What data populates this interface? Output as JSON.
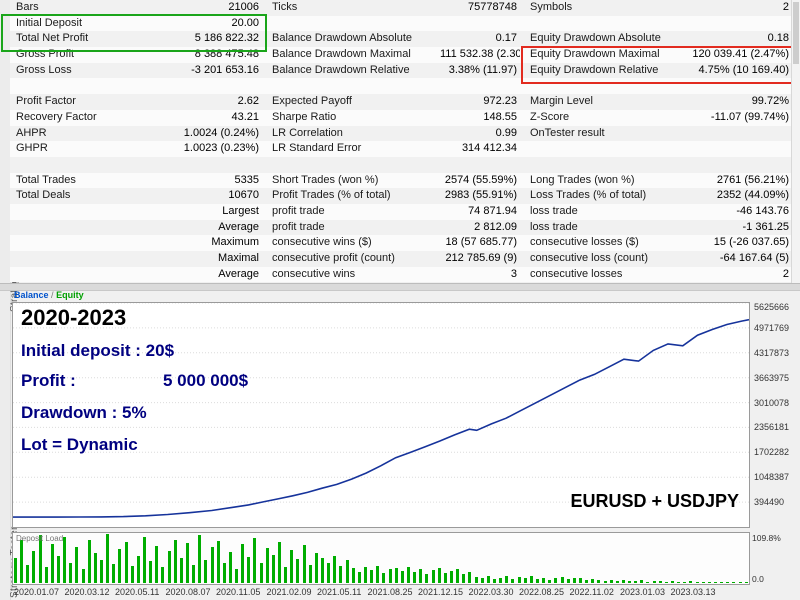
{
  "panel": {
    "caption": "Strategy Tester"
  },
  "highlights": {
    "green": "#1aa51a",
    "red": "#e22b1f"
  },
  "stats": {
    "rows": [
      [
        "Bars",
        "21006",
        "Ticks",
        "75778748",
        "Symbols",
        "2"
      ],
      [
        "Initial Deposit",
        "20.00",
        "",
        "",
        "",
        ""
      ],
      [
        "Total Net Profit",
        "5 186 822.32",
        "Balance Drawdown Absolute",
        "0.17",
        "Equity Drawdown Absolute",
        "0.18"
      ],
      [
        "Gross Profit",
        "8 388 475.48",
        "Balance Drawdown Maximal",
        "111 532.38 (2.30%)",
        "Equity Drawdown Maximal",
        "120 039.41 (2.47%)"
      ],
      [
        "Gross Loss",
        "-3 201 653.16",
        "Balance Drawdown Relative",
        "3.38% (11.97)",
        "Equity Drawdown Relative",
        "4.75% (10 169.40)"
      ],
      [
        "",
        "",
        "",
        "",
        "",
        ""
      ],
      [
        "Profit Factor",
        "2.62",
        "Expected Payoff",
        "972.23",
        "Margin Level",
        "99.72%"
      ],
      [
        "Recovery Factor",
        "43.21",
        "Sharpe Ratio",
        "148.55",
        "Z-Score",
        "-11.07 (99.74%)"
      ],
      [
        "AHPR",
        "1.0024 (0.24%)",
        "LR Correlation",
        "0.99",
        "OnTester result",
        ""
      ],
      [
        "GHPR",
        "1.0023 (0.23%)",
        "LR Standard Error",
        "314 412.34",
        "",
        ""
      ],
      [
        "",
        "",
        "",
        "",
        "",
        ""
      ],
      [
        "Total Trades",
        "5335",
        "Short Trades (won %)",
        "2574 (55.59%)",
        "Long Trades (won %)",
        "2761 (56.21%)"
      ],
      [
        "Total Deals",
        "10670",
        "Profit Trades (% of total)",
        "2983 (55.91%)",
        "Loss Trades (% of total)",
        "2352 (44.09%)"
      ],
      [
        "",
        "Largest",
        "profit trade",
        "74 871.94",
        "loss trade",
        "-46 143.76"
      ],
      [
        "",
        "Average",
        "profit trade",
        "2 812.09",
        "loss trade",
        "-1 361.25"
      ],
      [
        "",
        "Maximum",
        "consecutive wins ($)",
        "18 (57 685.77)",
        "consecutive losses ($)",
        "15 (-26 037.65)"
      ],
      [
        "",
        "Maximal",
        "consecutive profit (count)",
        "212 785.69 (9)",
        "consecutive loss (count)",
        "-64 167.64 (5)"
      ],
      [
        "",
        "Average",
        "consecutive wins",
        "3",
        "consecutive losses",
        "2"
      ]
    ]
  },
  "chart_data": [
    {
      "type": "line",
      "title": "Balance / Equity",
      "legend": [
        "Balance",
        "Equity"
      ],
      "legend_colors": [
        "#0052cc",
        "#00a000"
      ],
      "legend_separator": "/",
      "ylim": [
        -259408,
        5625666
      ],
      "yticks": [
        5625666,
        4971769,
        4317873,
        3663975,
        3010078,
        2356181,
        1702282,
        1048387,
        394490
      ],
      "grid": true,
      "series": [
        {
          "name": "Equity",
          "color": "#16339b",
          "points": [
            [
              0,
              20
            ],
            [
              0.03,
              200
            ],
            [
              0.06,
              900
            ],
            [
              0.09,
              2500
            ],
            [
              0.12,
              6000
            ],
            [
              0.15,
              15000
            ],
            [
              0.18,
              35000
            ],
            [
              0.21,
              70000
            ],
            [
              0.24,
              115000
            ],
            [
              0.27,
              175000
            ],
            [
              0.3,
              260000
            ],
            [
              0.32,
              320000
            ],
            [
              0.34,
              400000
            ],
            [
              0.36,
              480000
            ],
            [
              0.38,
              560000
            ],
            [
              0.4,
              650000
            ],
            [
              0.42,
              760000
            ],
            [
              0.44,
              860000
            ],
            [
              0.46,
              1000000
            ],
            [
              0.48,
              1160000
            ],
            [
              0.5,
              1350000
            ],
            [
              0.52,
              1560000
            ],
            [
              0.54,
              1700000
            ],
            [
              0.56,
              1850000
            ],
            [
              0.58,
              2000000
            ],
            [
              0.6,
              2160000
            ],
            [
              0.62,
              2310000
            ],
            [
              0.63,
              2280000
            ],
            [
              0.65,
              2450000
            ],
            [
              0.67,
              2600000
            ],
            [
              0.69,
              2800000
            ],
            [
              0.71,
              3000000
            ],
            [
              0.73,
              3200000
            ],
            [
              0.75,
              3400000
            ],
            [
              0.77,
              3600000
            ],
            [
              0.79,
              3750000
            ],
            [
              0.81,
              3950000
            ],
            [
              0.83,
              4150000
            ],
            [
              0.85,
              4100000
            ],
            [
              0.87,
              4380000
            ],
            [
              0.89,
              4550000
            ],
            [
              0.91,
              4500000
            ],
            [
              0.93,
              4780000
            ],
            [
              0.95,
              4930000
            ],
            [
              0.97,
              5060000
            ],
            [
              0.99,
              5150000
            ],
            [
              1,
              5186842
            ]
          ]
        }
      ],
      "annotations": {
        "period": "2020-2023",
        "line1": "Initial deposit : 20$",
        "line2_label": "Profit :",
        "line2_value": "5 000 000$",
        "line3": "Drawdown : 5%",
        "line4": "Lot = Dynamic",
        "symbols": "EURUSD + USDJPY"
      }
    },
    {
      "type": "bar",
      "title": "Deposit Load",
      "bar_color": "#00ad00",
      "ymax": 109.8,
      "ymax_label": "109.8%",
      "ymin_label": "0.0",
      "values": [
        55,
        95,
        40,
        70,
        105,
        35,
        85,
        60,
        100,
        45,
        80,
        30,
        95,
        65,
        50,
        108,
        42,
        75,
        90,
        38,
        60,
        100,
        48,
        82,
        35,
        70,
        95,
        55,
        88,
        40,
        105,
        50,
        78,
        92,
        45,
        68,
        30,
        85,
        58,
        98,
        44,
        76,
        62,
        90,
        36,
        72,
        52,
        84,
        40,
        66,
        55,
        45,
        60,
        38,
        50,
        32,
        25,
        35,
        28,
        38,
        22,
        30,
        34,
        26,
        36,
        24,
        30,
        20,
        28,
        33,
        22,
        27,
        31,
        19,
        25,
        14,
        10,
        15,
        9,
        12,
        16,
        8,
        13,
        11,
        15,
        9,
        12,
        7,
        11,
        13,
        8,
        10,
        12,
        7,
        9,
        6,
        5,
        7,
        4,
        6,
        5,
        4,
        6,
        3,
        5,
        4,
        3,
        4,
        2,
        3,
        4,
        2,
        3,
        2,
        3,
        2,
        2,
        3,
        2,
        2
      ],
      "x_dates": [
        "2020.01.07",
        "2020.03.12",
        "2020.05.11",
        "2020.08.07",
        "2020.11.05",
        "2021.02.09",
        "2021.05.11",
        "2021.08.25",
        "2021.12.15",
        "2022.03.30",
        "2022.08.25",
        "2022.11.02",
        "2023.01.03",
        "2023.03.13"
      ]
    }
  ]
}
